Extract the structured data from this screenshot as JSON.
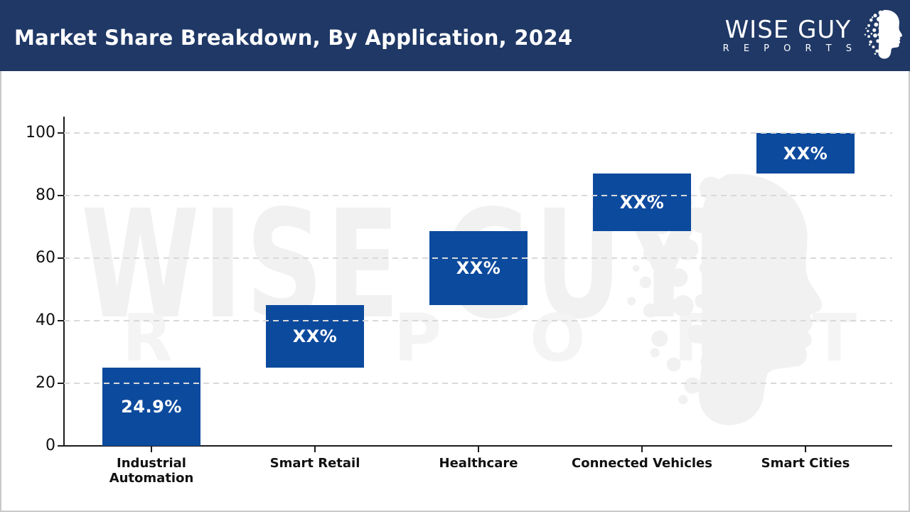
{
  "header": {
    "title": "Market Share Breakdown, By Application, 2024",
    "logo": {
      "line1": "WISE GUY",
      "line2": "R E P O R T S"
    }
  },
  "watermark": {
    "line1": "WISE GUY",
    "line2": "R E P O R T S"
  },
  "chart_data": {
    "type": "bar",
    "subtype": "waterfall",
    "title": "Market Share Breakdown, By Application, 2024",
    "categories": [
      "Industrial\nAutomation",
      "Smart Retail",
      "Healthcare",
      "Connected Vehicles",
      "Smart Cities"
    ],
    "segments": [
      {
        "category": "Industrial Automation",
        "label": "24.9%",
        "start": 0,
        "end": 24.9
      },
      {
        "category": "Smart Retail",
        "label": "XX%",
        "start": 24.9,
        "end": 45.0
      },
      {
        "category": "Healthcare",
        "label": "XX%",
        "start": 45.0,
        "end": 68.6
      },
      {
        "category": "Connected Vehicles",
        "label": "XX%",
        "start": 68.6,
        "end": 87.0
      },
      {
        "category": "Smart Cities",
        "label": "XX%",
        "start": 87.0,
        "end": 100.0
      }
    ],
    "yticks": [
      0,
      20,
      40,
      60,
      80,
      100
    ],
    "ylim": [
      0,
      105
    ],
    "xlabel": "",
    "ylabel": "",
    "grid": "horizontal-dashed",
    "legend": "none"
  },
  "colors": {
    "header_bg": "#1f3866",
    "bar": "#0c4a9d",
    "bar_label": "#ffffff",
    "axis": "#1c1c1c",
    "grid": "#d9d9d9",
    "watermark": "#f1f1f1",
    "watermark2": "#f4f4f4",
    "border": "#c9c9c9"
  }
}
